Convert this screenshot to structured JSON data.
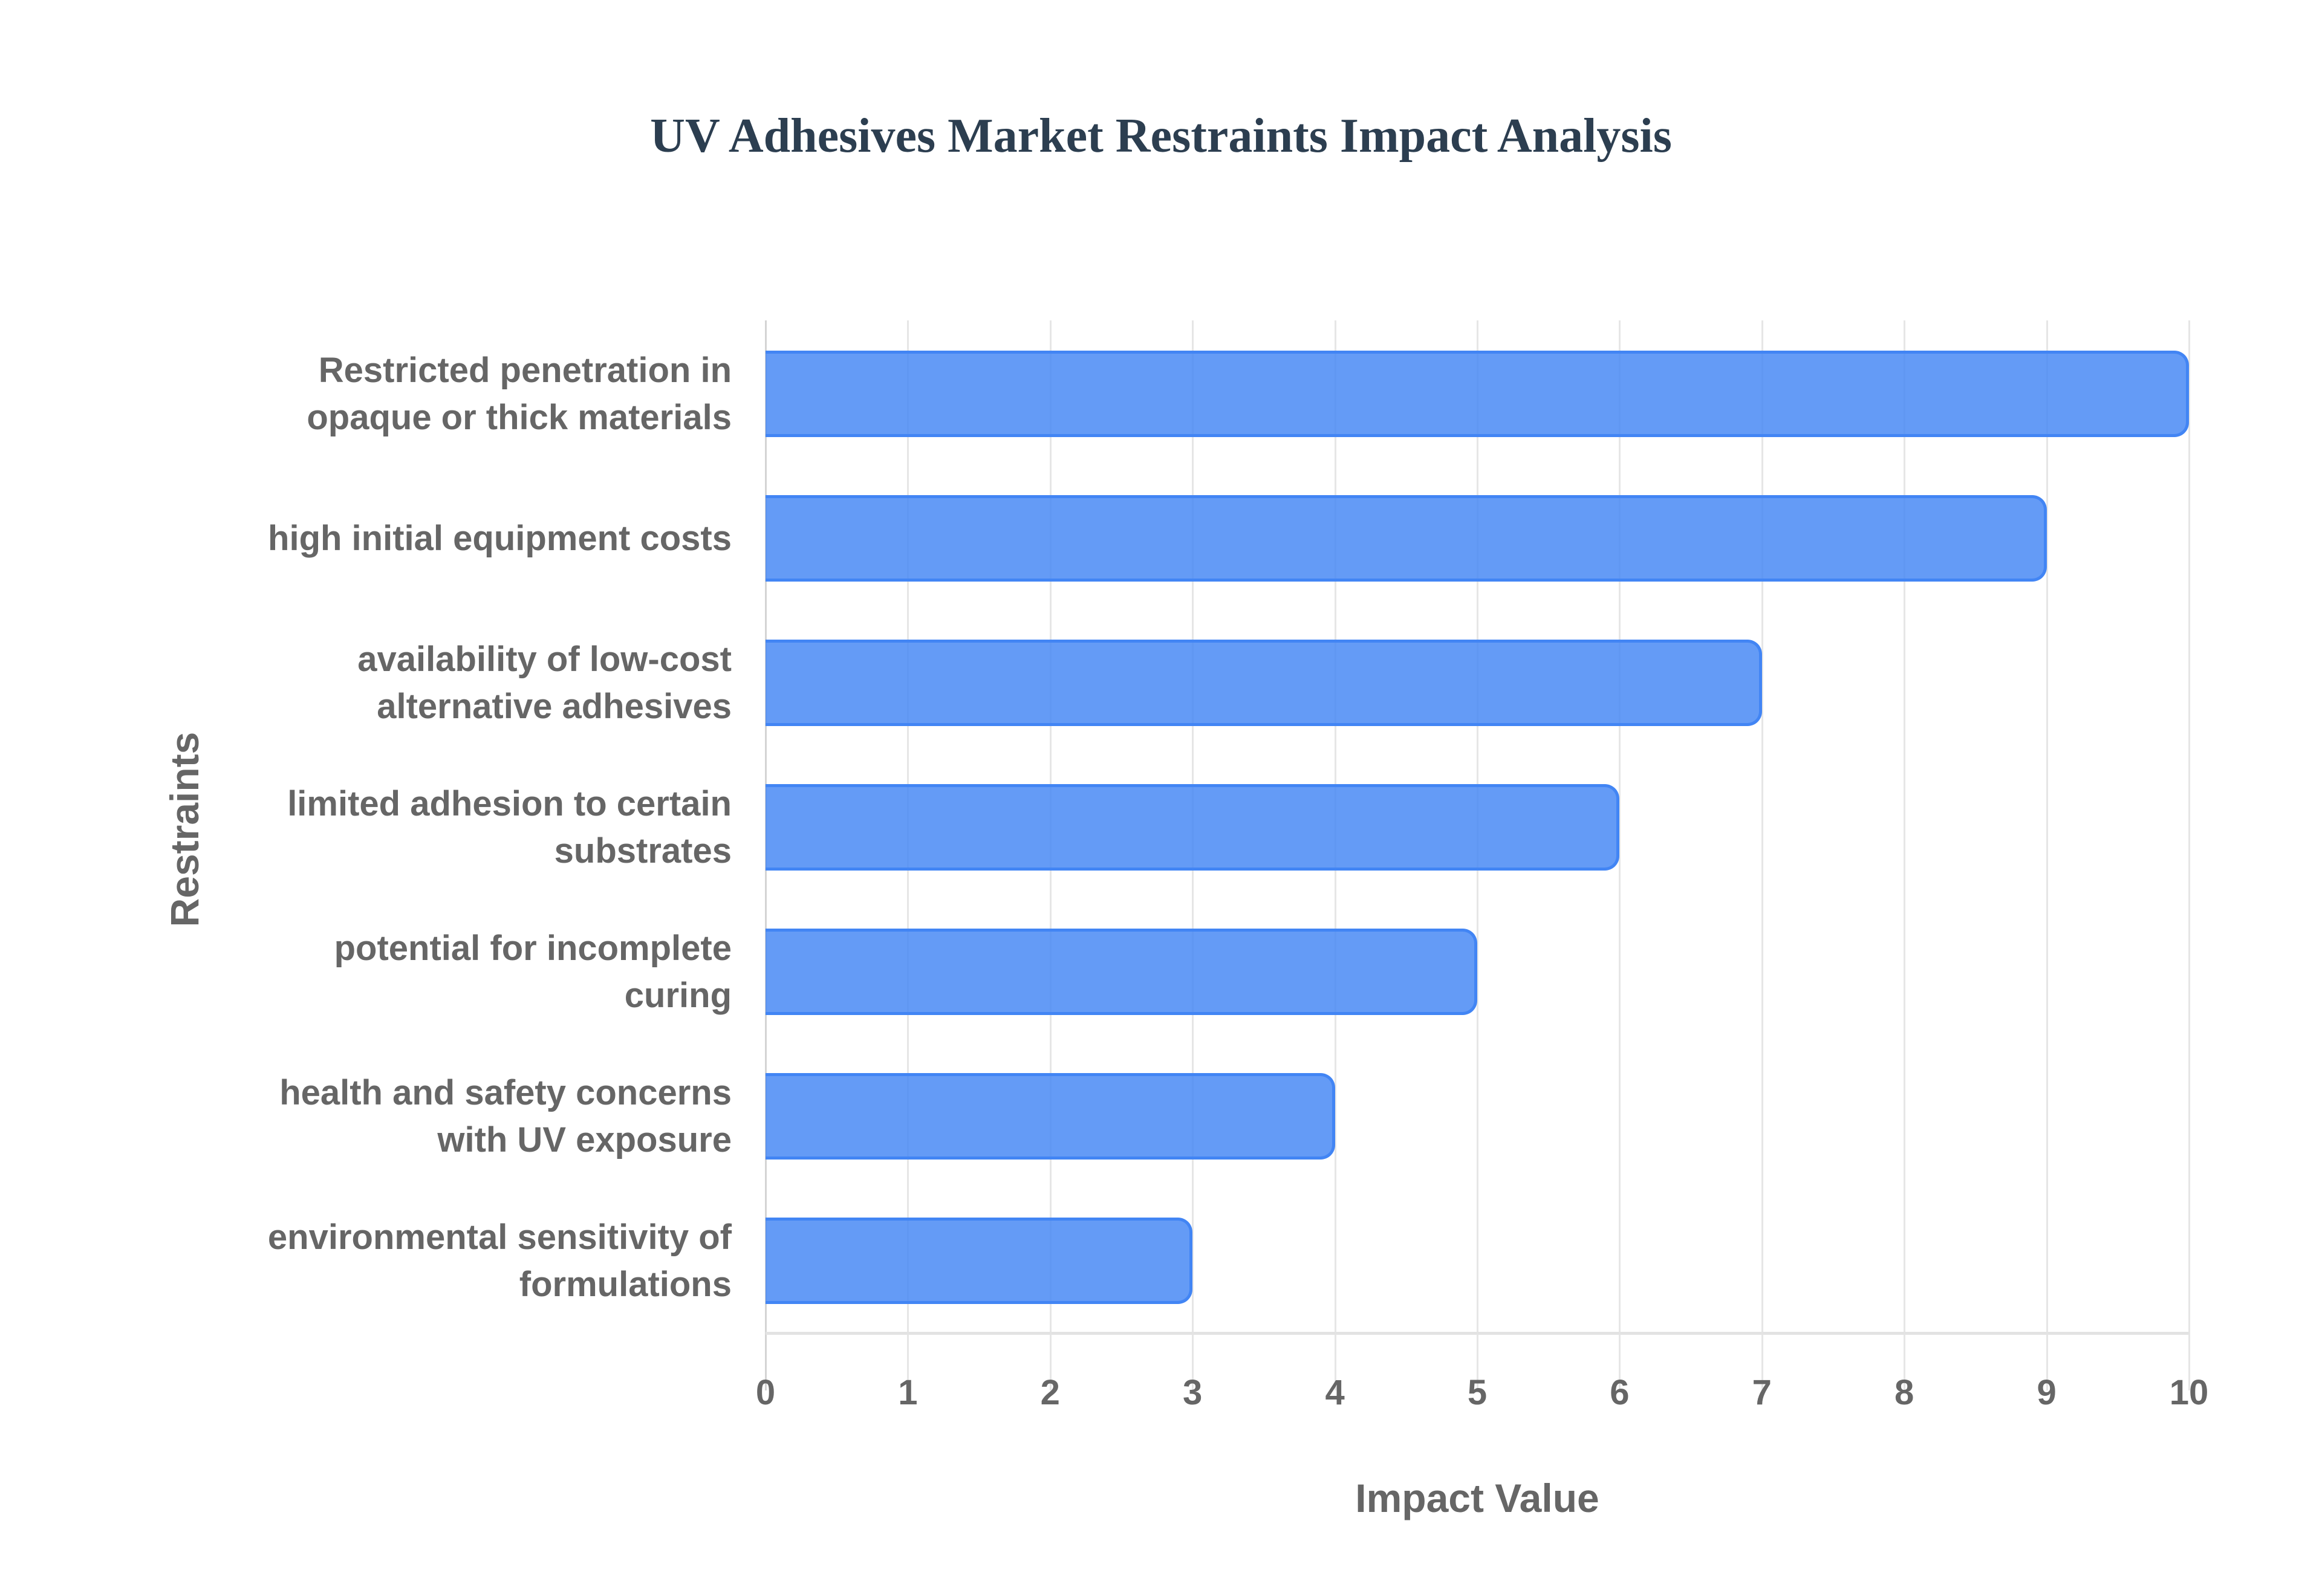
{
  "chart_data": {
    "type": "bar",
    "orientation": "horizontal",
    "title": "UV Adhesives Market Restraints Impact Analysis",
    "xlabel": "Impact Value",
    "ylabel": "Restraints",
    "xlim": [
      0,
      10
    ],
    "x_ticks": [
      "0",
      "1",
      "2",
      "3",
      "4",
      "5",
      "6",
      "7",
      "8",
      "9",
      "10"
    ],
    "grid": true,
    "legend": "none",
    "bar_color": "#4285f4",
    "categories": [
      "Restricted penetration in opaque or thick materials",
      "high initial equipment costs",
      "availability of low-cost alternative adhesives",
      "limited adhesion to certain substrates",
      "potential for incomplete curing",
      "health and safety concerns with UV exposure",
      "environmental sensitivity of formulations"
    ],
    "values": [
      10,
      9,
      7,
      6,
      5,
      4,
      3
    ],
    "category_label_lines": [
      [
        "Restricted penetration in",
        "opaque or thick materials"
      ],
      [
        "high initial equipment costs"
      ],
      [
        "availability of low-cost",
        "alternative adhesives"
      ],
      [
        "limited adhesion to certain",
        "substrates"
      ],
      [
        "potential for incomplete",
        "curing"
      ],
      [
        "health and safety concerns",
        "with UV exposure"
      ],
      [
        "environmental sensitivity of",
        "formulations"
      ]
    ]
  }
}
